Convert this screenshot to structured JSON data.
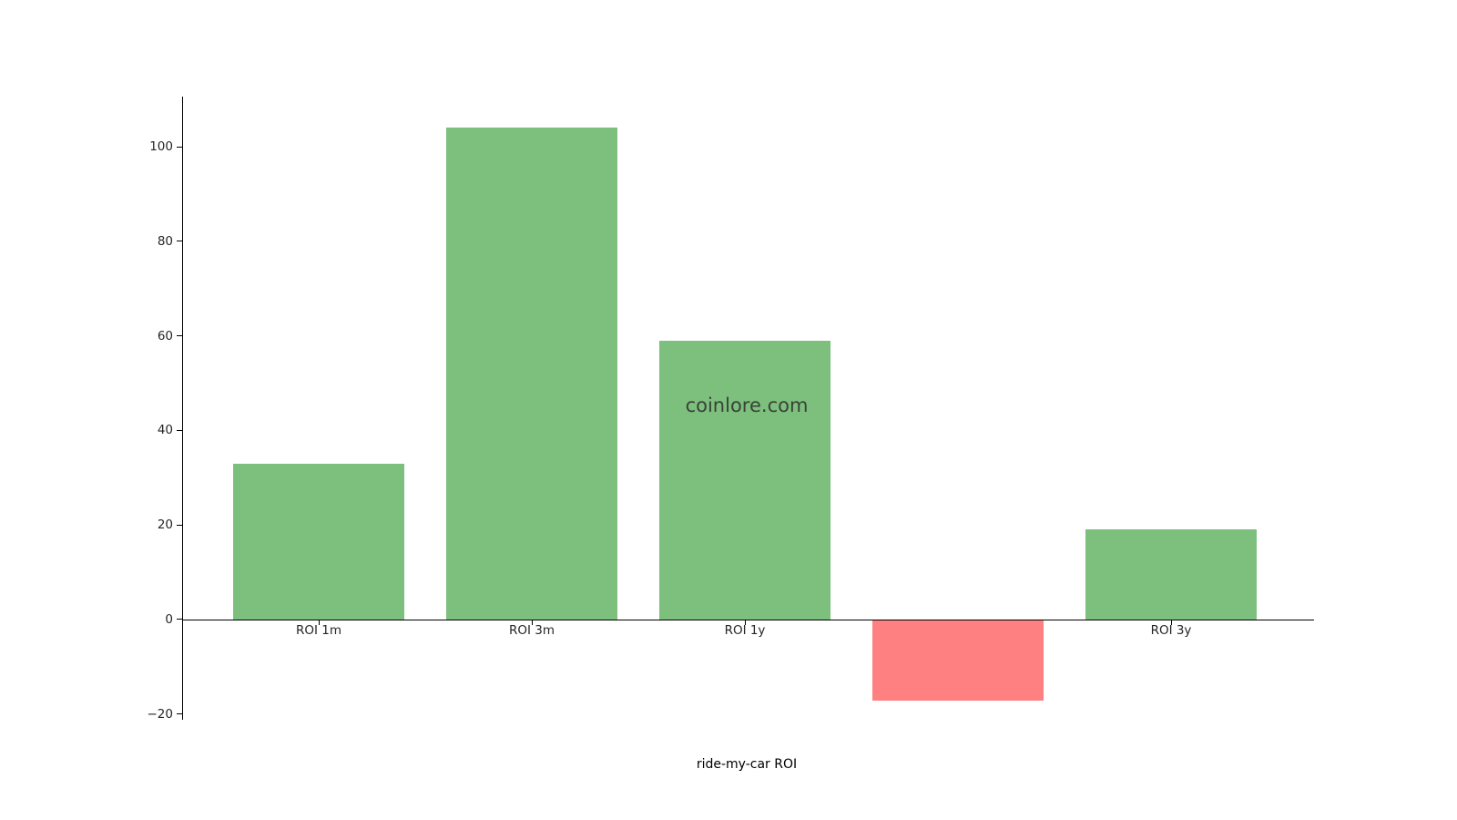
{
  "chart_data": {
    "type": "bar",
    "title": "",
    "xlabel": "ride-my-car ROI",
    "ylabel": "",
    "categories": [
      "ROI 1m",
      "ROI 3m",
      "ROI 1y",
      "",
      "ROI 3y"
    ],
    "values": [
      33,
      104,
      59,
      -17,
      19
    ],
    "yticks": [
      {
        "value": 100,
        "label": "100"
      },
      {
        "value": 80,
        "label": "80"
      },
      {
        "value": 60,
        "label": "60"
      },
      {
        "value": 40,
        "label": "40"
      },
      {
        "value": 20,
        "label": "20"
      },
      {
        "value": 0,
        "label": "0"
      },
      {
        "value": -20,
        "label": "−20"
      }
    ],
    "ylim": [
      -21.2,
      110.6
    ],
    "grid": false,
    "legend": null,
    "baseline": 0,
    "colors": {
      "positive_bar": "#7dc07d",
      "negative_bar": "#ff8080",
      "axis": "#000000",
      "tick_label": "#262626",
      "watermark_text": "#2b2b2b"
    },
    "watermark": "coinlore.com",
    "note": "Fourth bar (negative, red) shows no visible x tick mark or tick label in the rendered image"
  }
}
